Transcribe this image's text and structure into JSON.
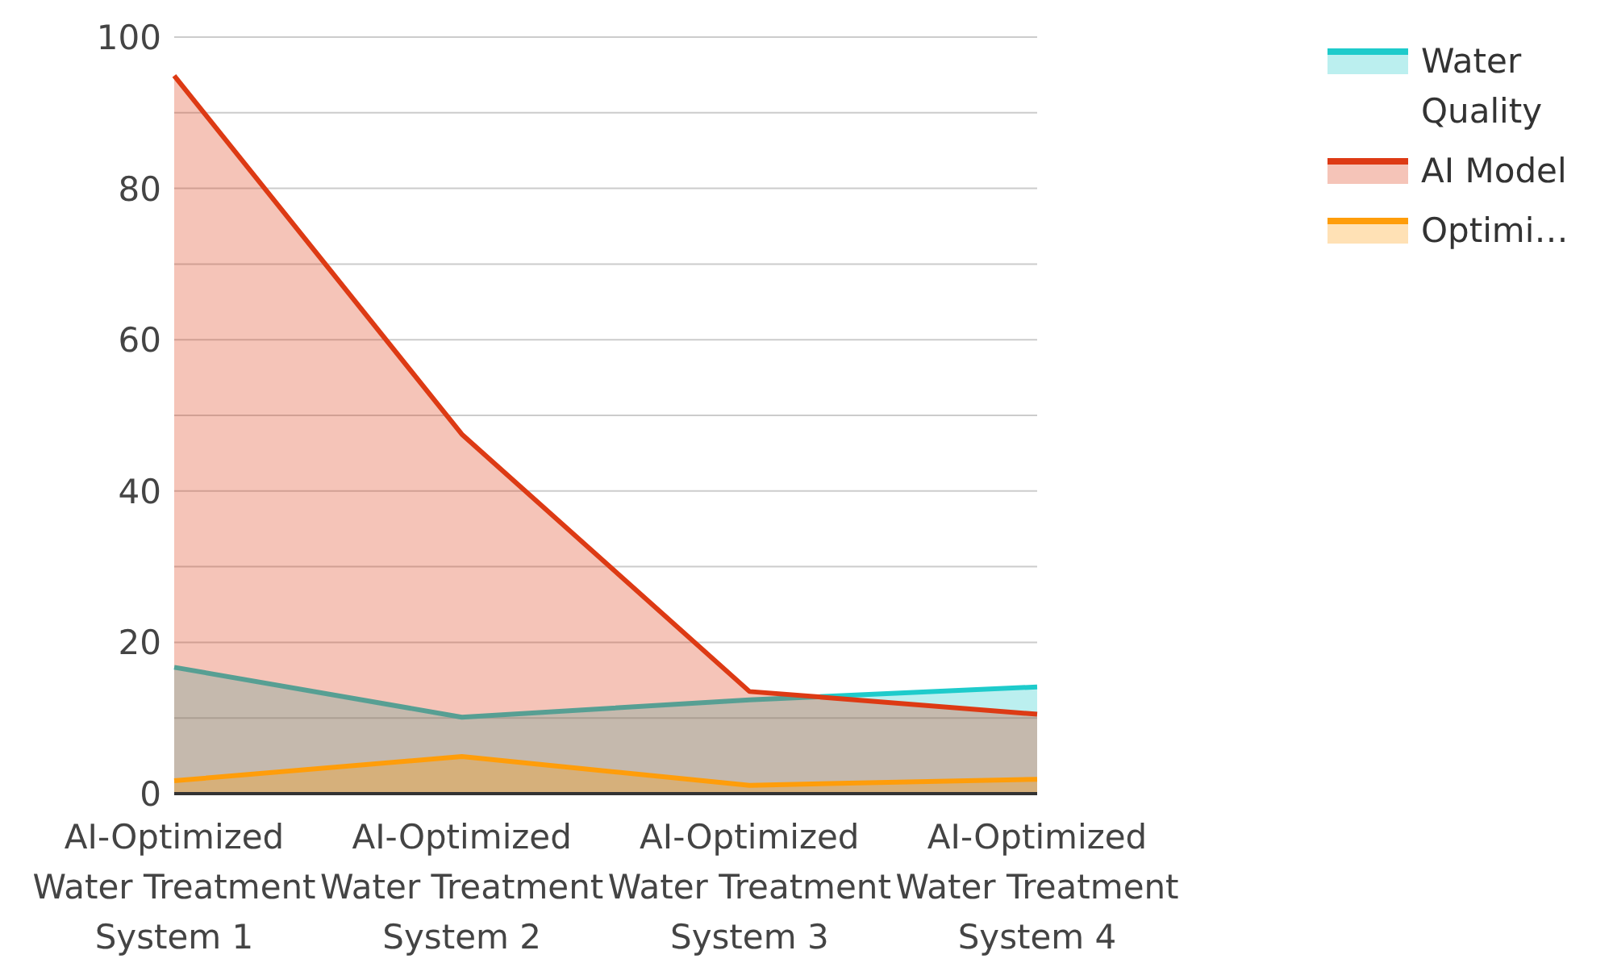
{
  "chart_data": {
    "type": "area",
    "categories": [
      "AI-Optimized Water Treatment System 1",
      "AI-Optimized Water Treatment System 2",
      "AI-Optimized Water Treatment System 3",
      "AI-Optimized Water Treatment System 4"
    ],
    "series": [
      {
        "name": "Water Quality",
        "color": "#1ecbcb",
        "values": [
          16.7,
          10.1,
          12.4,
          14.1
        ]
      },
      {
        "name": "AI Model",
        "color": "#dd3a14",
        "values": [
          94.9,
          47.5,
          13.5,
          10.5
        ]
      },
      {
        "name": "Optimi…",
        "color": "#ff9d0a",
        "values": [
          1.7,
          4.9,
          1.1,
          1.9
        ]
      }
    ],
    "ylim": [
      0,
      100
    ],
    "yticks": [
      0,
      {
        "value": 10,
        "label": null
      },
      20,
      {
        "value": 30,
        "label": null
      },
      40,
      {
        "value": 50,
        "label": null
      },
      60,
      {
        "value": 70,
        "label": null
      },
      80,
      {
        "value": 90,
        "label": null
      },
      100
    ],
    "grid": "y",
    "legend": "top right",
    "marker": "none",
    "line_style": "solid"
  }
}
